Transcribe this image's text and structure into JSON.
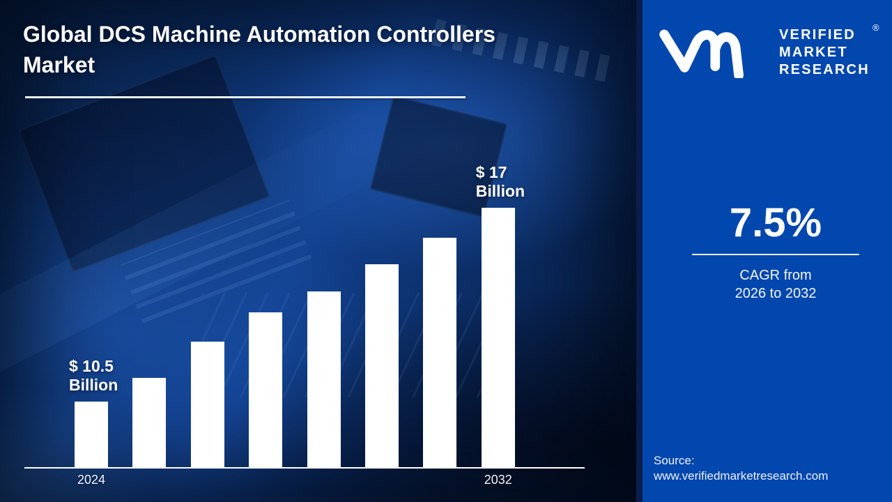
{
  "header": {
    "title_line1": "Global DCS Machine Automation Controllers",
    "title_line2": "Market"
  },
  "brand": {
    "name_lines": [
      "VERIFIED",
      "MARKET",
      "RESEARCH"
    ],
    "registered_mark": "®",
    "logo_mark": "vmr-monogram"
  },
  "stats": {
    "cagr_value": "7.5%",
    "cagr_caption_line1": "CAGR from",
    "cagr_caption_line2": "2026 to 2032"
  },
  "source": {
    "label": "Source:",
    "url": "www.verifiedmarketresearch.com"
  },
  "colors": {
    "right_panel_blue": "#0247ad",
    "divider_navy": "#0a1d4d",
    "bar_fill": "#ffffff",
    "axis_white": "#ffffff",
    "accent_underline": "#e9f6ff"
  },
  "chart_data": {
    "type": "bar",
    "title": "Global DCS Machine Automation Controllers Market",
    "unit": "USD Billion",
    "values": [
      10.5,
      11.3,
      12.5,
      13.5,
      14.2,
      15.1,
      16.0,
      17.0
    ],
    "value_axis_baseline": 8.3,
    "value_axis_max": 17,
    "grid": false,
    "legend": false,
    "bar_color": "#ffffff",
    "bar_value_labels": [
      {
        "bar_index": 0,
        "lines": [
          "$ 10.5",
          "Billion"
        ]
      },
      {
        "bar_index": 7,
        "lines": [
          "$ 17",
          "Billion"
        ]
      }
    ],
    "x_tick_labels": [
      {
        "bar_index": 0,
        "label": "2024"
      },
      {
        "bar_index": 7,
        "label": "2032"
      }
    ]
  }
}
